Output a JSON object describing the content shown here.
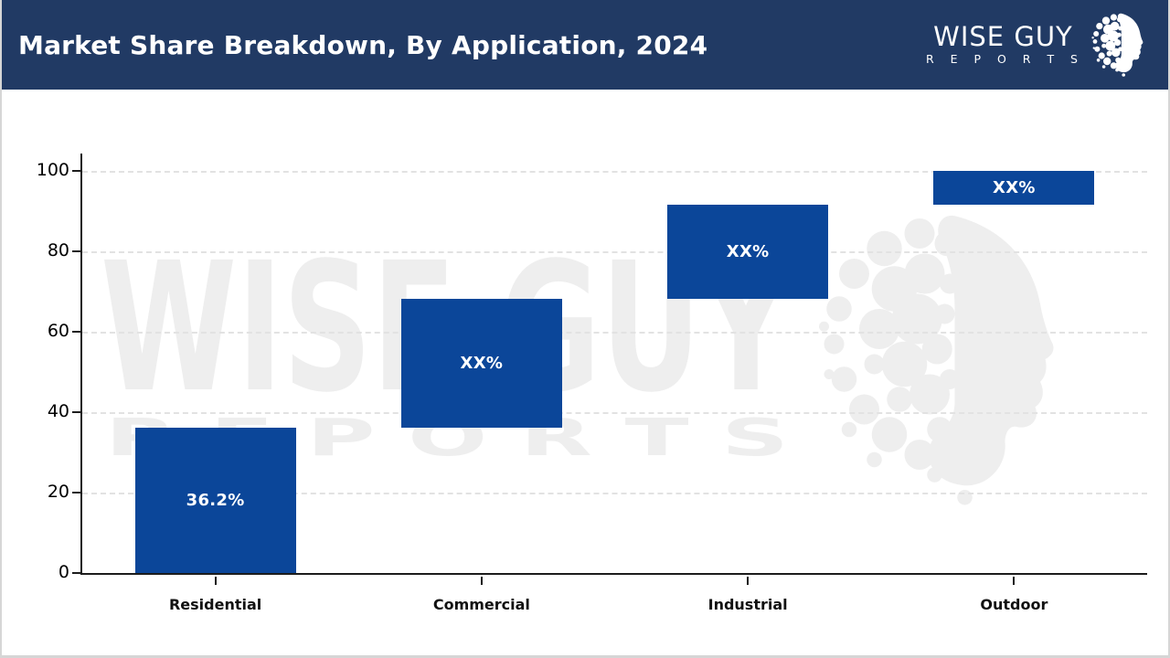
{
  "header": {
    "title": "Market Share Breakdown, By Application, 2024",
    "bg_color": "#213A64",
    "logo": {
      "line1": "WISE GUY",
      "line2": "R E P O R T S"
    }
  },
  "watermark": {
    "line1": "WISE GUY",
    "line2": "R E P O R T S",
    "color": "#eeeeee"
  },
  "chart_data": {
    "type": "bar",
    "subtype": "floating-segment-waterfall",
    "title": "Market Share Breakdown, By Application, 2024",
    "xlabel": "",
    "ylabel": "",
    "categories": [
      "Residential",
      "Commercial",
      "Industrial",
      "Outdoor"
    ],
    "segments": [
      {
        "category": "Residential",
        "base": 0,
        "top": 36.2,
        "label": "36.2%"
      },
      {
        "category": "Commercial",
        "base": 36.2,
        "top": 68.2,
        "label": "XX%"
      },
      {
        "category": "Industrial",
        "base": 68.2,
        "top": 91.6,
        "label": "XX%"
      },
      {
        "category": "Outdoor",
        "base": 91.6,
        "top": 100,
        "label": "XX%"
      }
    ],
    "y_ticks": [
      0,
      20,
      40,
      60,
      80,
      100
    ],
    "ylim": [
      0,
      104
    ],
    "bar_color": "#0B4699",
    "bar_label_color": "#ffffff",
    "grid": "dashed-horizontal",
    "legend": "none"
  }
}
